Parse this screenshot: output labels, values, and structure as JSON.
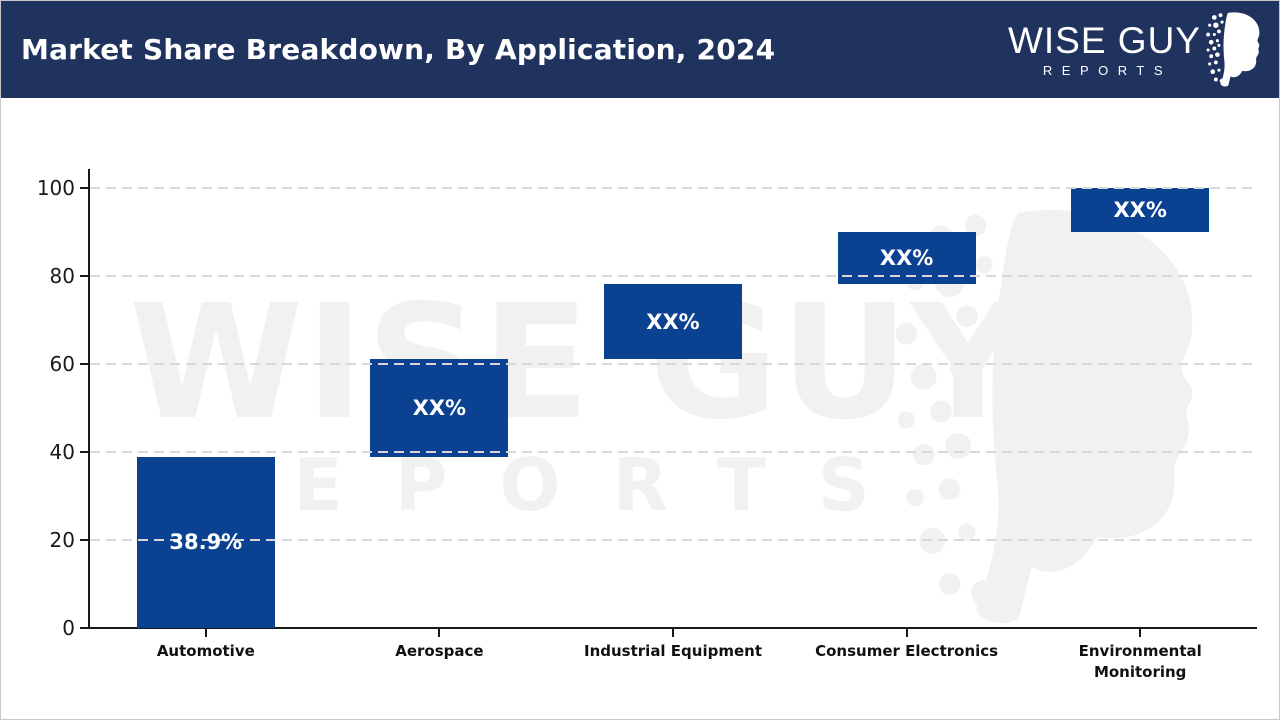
{
  "header": {
    "title": "Market Share Breakdown, By Application, 2024",
    "logo": {
      "brand": "WISE GUY",
      "sub": "REPORTS",
      "icon": "dotted-face-profile"
    }
  },
  "watermark": {
    "line1": "WISE GUY",
    "line2": "REPORTS",
    "icon": "dotted-face-profile"
  },
  "chart_data": {
    "type": "bar",
    "subtype": "waterfall",
    "title": "Market Share Breakdown, By Application, 2024",
    "categories": [
      "Automotive",
      "Aerospace",
      "Industrial Equipment",
      "Consumer Electronics",
      "Environmental Monitoring"
    ],
    "segments": [
      {
        "category": "Automotive",
        "start": 0,
        "end": 38.9,
        "label": "38.9%"
      },
      {
        "category": "Aerospace",
        "start": 38.9,
        "end": 61.1,
        "label": "XX%"
      },
      {
        "category": "Industrial Equipment",
        "start": 61.1,
        "end": 78.2,
        "label": "XX%"
      },
      {
        "category": "Consumer Electronics",
        "start": 78.2,
        "end": 89.9,
        "label": "XX%"
      },
      {
        "category": "Environmental Monitoring",
        "start": 89.9,
        "end": 100.0,
        "label": "XX%"
      }
    ],
    "xlabel": "",
    "ylabel": "",
    "ylim": [
      0,
      100
    ],
    "y_ticks": [
      0,
      20,
      40,
      60,
      80,
      100
    ],
    "y_tick_labels": [
      "0",
      "20",
      "40",
      "60",
      "80",
      "100"
    ],
    "grid": "dashed-horizontal-on-top",
    "legend": "none"
  },
  "colors": {
    "header_bg": "#20335f",
    "bar": "#0a4191",
    "bar_label": "#ffffff",
    "axis": "#1a1a1a",
    "grid": "#d8d8d8",
    "watermark": "#f1f1f1",
    "title_text": "#ffffff"
  }
}
